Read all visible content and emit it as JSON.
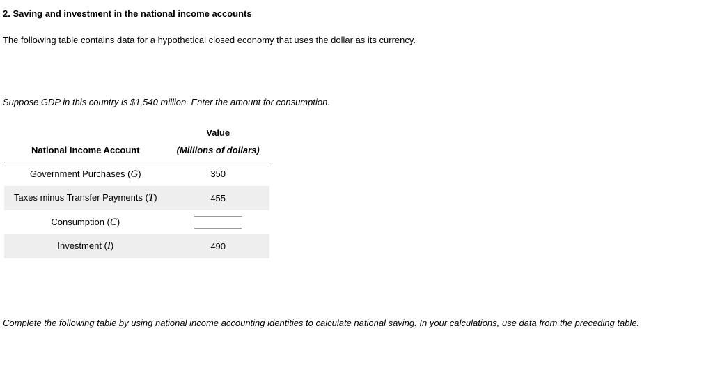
{
  "heading": "2. Saving and investment in the national income accounts",
  "intro": "The following table contains data for a hypothetical closed economy that uses the dollar as its currency.",
  "instruction": "Suppose GDP in this country is $1,540 million. Enter the amount for consumption.",
  "table": {
    "col1_header": "National Income Account",
    "col2_header_top": "Value",
    "col2_header_sub": "(Millions of dollars)",
    "rows": [
      {
        "label_prefix": "Government Purchases (",
        "var": "G",
        "label_suffix": ")",
        "value": "350",
        "is_input": false
      },
      {
        "label_prefix": "Taxes minus Transfer Payments (",
        "var": "T",
        "label_suffix": ")",
        "value": "455",
        "is_input": false
      },
      {
        "label_prefix": "Consumption (",
        "var": "C",
        "label_suffix": ")",
        "value": "",
        "is_input": true
      },
      {
        "label_prefix": "Investment (",
        "var": "I",
        "label_suffix": ")",
        "value": "490",
        "is_input": false
      }
    ]
  },
  "footer": "Complete the following table by using national income accounting identities to calculate national saving. In your calculations, use data from the preceding table.",
  "style": {
    "body_font_size": 13,
    "row_alt_bg": "#eeeeee",
    "border_color": "#333333",
    "input_border": "#999999",
    "text_color": "#000000",
    "background": "#ffffff"
  }
}
